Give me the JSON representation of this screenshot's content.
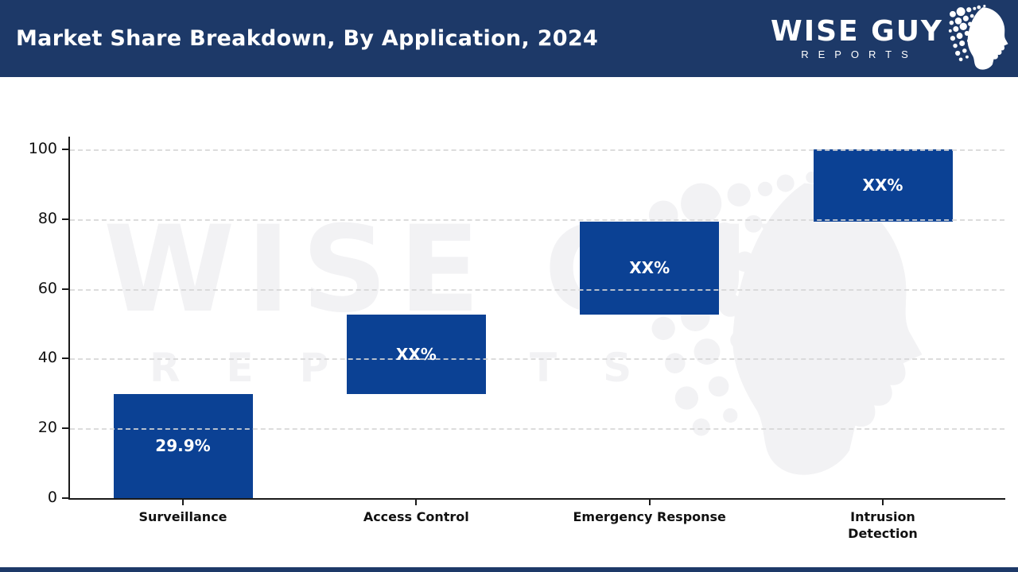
{
  "header": {
    "title": "Market Share Breakdown, By Application, 2024",
    "logo": {
      "name": "WISE GUY",
      "tagline": "REPORTS"
    }
  },
  "watermark": {
    "line1": "WISE GUY",
    "line2": "REPORTS"
  },
  "colors": {
    "header_bg": "#1d3968",
    "bar_blue": "#0b4194",
    "grid_gray": "#d6d6d6",
    "axis_black": "#1a1a1a",
    "watermark_gray": "#f2f2f4",
    "label_white": "#ffffff",
    "text_dark": "#111111"
  },
  "chart_data": {
    "type": "bar",
    "subtype": "waterfall",
    "title": "Market Share Breakdown, By Application, 2024",
    "unit": "%",
    "ylim": [
      0,
      100
    ],
    "yticks": [
      0,
      20,
      40,
      60,
      80,
      100
    ],
    "grid": "horizontal-dashed",
    "legend": "none",
    "bar_color": "#0b4194",
    "categories": [
      "Surveillance",
      "Access Control",
      "Emergency Response",
      "Intrusion Detection"
    ],
    "category_lines": [
      [
        "Surveillance"
      ],
      [
        "Access Control"
      ],
      [
        "Emergency Response"
      ],
      [
        "Intrusion",
        "Detection"
      ]
    ],
    "segments": [
      {
        "category": "Surveillance",
        "start": 0,
        "end": 29.9,
        "label": "29.9%"
      },
      {
        "category": "Access Control",
        "start": 29.9,
        "end": 52.7,
        "label": "XX%"
      },
      {
        "category": "Emergency Response",
        "start": 52.7,
        "end": 79.3,
        "label": "XX%"
      },
      {
        "category": "Intrusion Detection",
        "start": 79.3,
        "end": 100,
        "label": "XX%"
      }
    ]
  }
}
